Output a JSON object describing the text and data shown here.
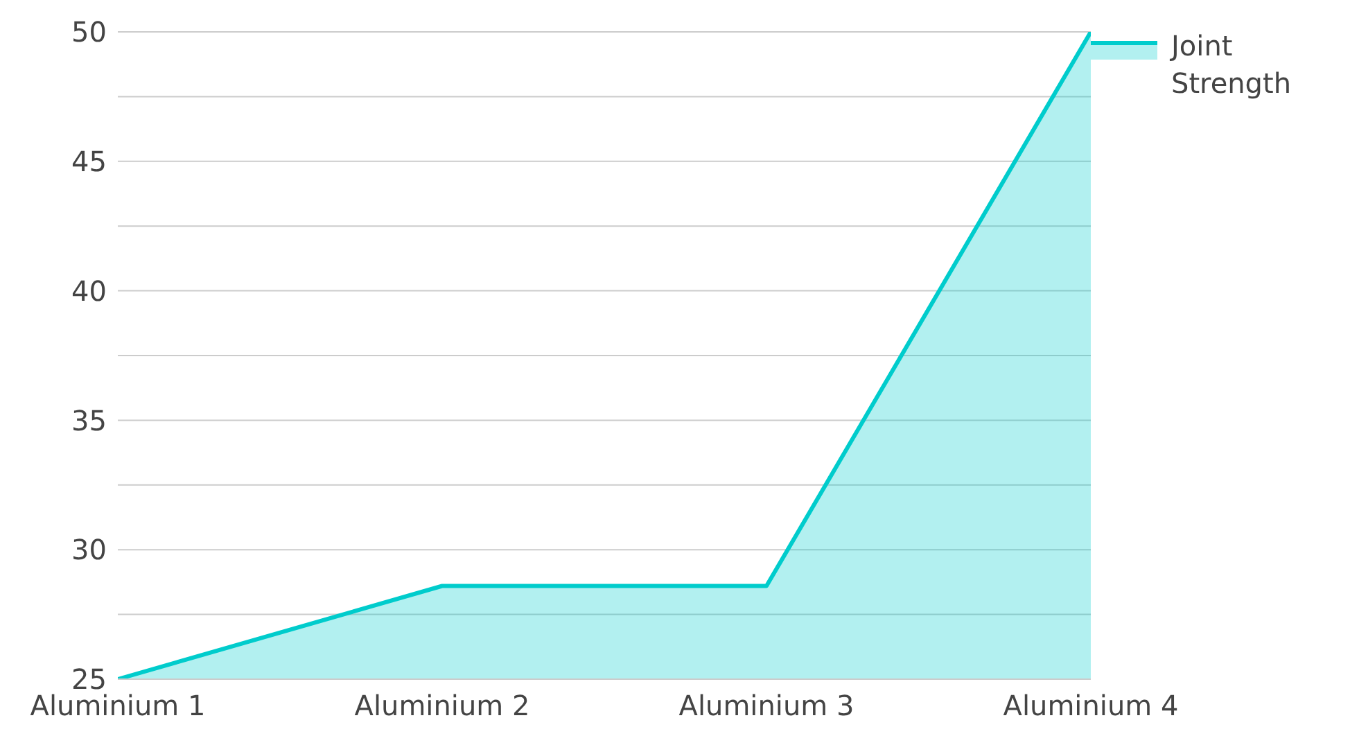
{
  "chart_data": {
    "type": "area",
    "categories": [
      "Aluminium 1",
      "Aluminium 2",
      "Aluminium 3",
      "Aluminium 4"
    ],
    "series": [
      {
        "name": "Joint Strength",
        "color": "#00cccc",
        "values": [
          25,
          28.6,
          28.6,
          50
        ]
      }
    ],
    "ylim": [
      25,
      50
    ],
    "yticks": [
      25,
      {
        "value": 27.5,
        "label": null
      },
      30,
      {
        "value": 32.5,
        "label": null
      },
      35,
      {
        "value": 37.5,
        "label": null
      },
      40,
      {
        "value": 42.5,
        "label": null
      },
      45,
      {
        "value": 47.5,
        "label": null
      },
      50
    ],
    "grid": "y",
    "legend": "top right"
  }
}
